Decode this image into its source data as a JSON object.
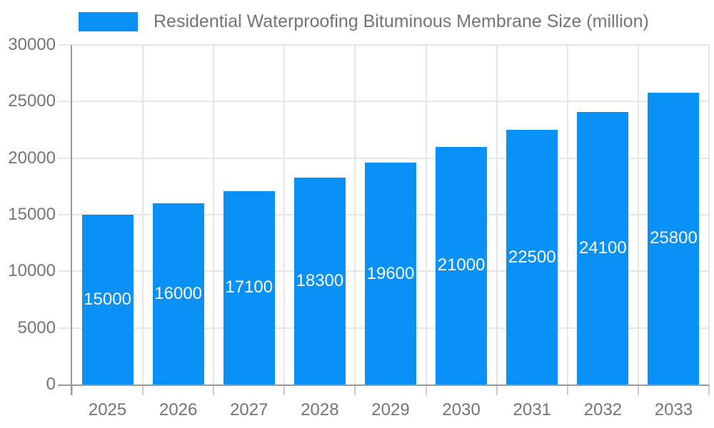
{
  "legend": {
    "label": "Residential Waterproofing Bituminous Membrane Size (million)"
  },
  "colors": {
    "bar": "#0A91F7",
    "axis": "#999999",
    "grid": "#e6e6e6",
    "tick": "#cccccc",
    "text": "#757575",
    "bar_label": "#ffffff",
    "background": "#ffffff"
  },
  "chart_data": {
    "type": "bar",
    "title": "Residential Waterproofing Bituminous Membrane Size (million)",
    "categories": [
      "2025",
      "2026",
      "2027",
      "2028",
      "2029",
      "2030",
      "2031",
      "2032",
      "2033"
    ],
    "values": [
      15000,
      16000,
      17100,
      18300,
      19600,
      21000,
      22500,
      24100,
      25800
    ],
    "xlabel": "",
    "ylabel": "",
    "ylim": [
      0,
      30000
    ],
    "ytick_step": 5000,
    "yticks": [
      "0",
      "5000",
      "10000",
      "15000",
      "20000",
      "25000",
      "30000"
    ],
    "grid": true,
    "legend_position": "top-left",
    "bar_value_labels": "centered-inside-white"
  }
}
